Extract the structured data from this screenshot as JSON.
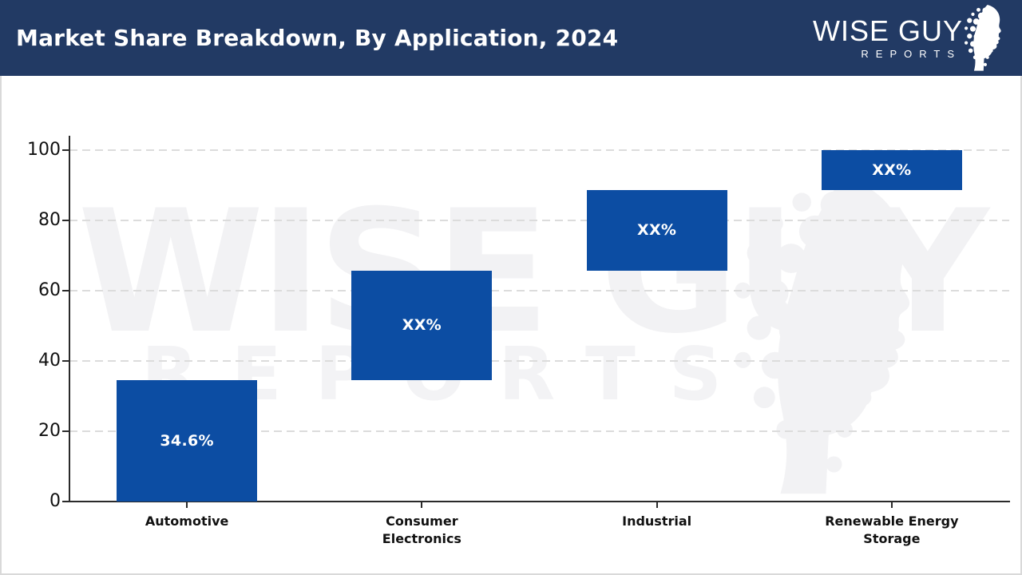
{
  "header": {
    "title": "Market Share Breakdown, By Application, 2024",
    "logo": {
      "line1": "WISE GUY",
      "line2": "REPORTS"
    }
  },
  "watermark": {
    "line1": "WISE GUY",
    "line2": "REPORTS"
  },
  "colors": {
    "header_background": "#223a64",
    "bar": "#0c4da3",
    "grid": "#dcdcdc",
    "axis": "#2a2a2a",
    "watermark": "#f2f2f4",
    "frame_border": "#d9d9d9"
  },
  "chart_data": {
    "type": "bar",
    "subtype": "floating-waterfall",
    "title": "Market Share Breakdown, By Application, 2024",
    "categories": [
      "Automotive",
      "Consumer Electronics",
      "Industrial",
      "Renewable Energy Storage"
    ],
    "category_label_lines": [
      [
        "Automotive"
      ],
      [
        "Consumer",
        "Electronics"
      ],
      [
        "Industrial"
      ],
      [
        "Renewable Energy",
        "Storage"
      ]
    ],
    "segments": [
      {
        "category": "Automotive",
        "start": 0,
        "end": 34.6,
        "value_label": "34.6%"
      },
      {
        "category": "Consumer Electronics",
        "start": 34.6,
        "end": 65.6,
        "value_label": "XX%"
      },
      {
        "category": "Industrial",
        "start": 65.6,
        "end": 88.6,
        "value_label": "XX%"
      },
      {
        "category": "Renewable Energy Storage",
        "start": 88.6,
        "end": 100,
        "value_label": "XX%"
      }
    ],
    "yticks": [
      0,
      20,
      40,
      60,
      80,
      100
    ],
    "ylim": [
      0,
      104
    ],
    "xlabel": "",
    "ylabel": "",
    "grid": "horizontal-dashed",
    "legend": "none",
    "bar_color": "#0c4da3",
    "value_label_color": "#ffffff"
  }
}
